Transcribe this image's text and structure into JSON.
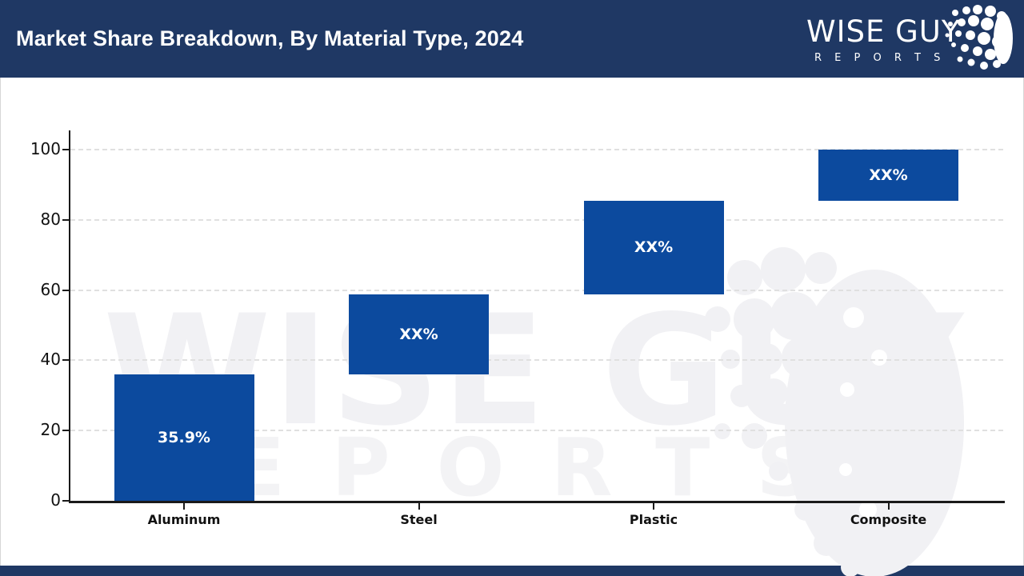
{
  "header": {
    "title": "Market Share Breakdown, By Material Type, 2024",
    "logo": {
      "line1": "WISE GUY",
      "line2": "R E P O R T S"
    }
  },
  "watermark": {
    "line1": "WISE GUY",
    "line2": "REPORTS"
  },
  "colors": {
    "header_navy": "#1f3864",
    "bar_blue": "#0c4a9e",
    "gridline_gray": "#e0e0e0",
    "watermark_gray": "#f1f1f4",
    "axis_black": "#1a1a1a"
  },
  "chart_data": {
    "type": "bar",
    "subtype": "waterfall-floating-bars",
    "title": "Market Share Breakdown, By Material Type, 2024",
    "categories": [
      "Aluminum",
      "Steel",
      "Plastic",
      "Composite"
    ],
    "segments": [
      {
        "category": "Aluminum",
        "start": 0,
        "end": 35.9,
        "label": "35.9%"
      },
      {
        "category": "Steel",
        "start": 35.9,
        "end": 58.8,
        "label": "XX%"
      },
      {
        "category": "Plastic",
        "start": 58.8,
        "end": 85.4,
        "label": "XX%"
      },
      {
        "category": "Composite",
        "start": 85.4,
        "end": 100,
        "label": "XX%"
      }
    ],
    "y_ticks": [
      0,
      20,
      40,
      60,
      80,
      100
    ],
    "ylim": [
      0,
      105
    ],
    "xlabel": "",
    "ylabel": "",
    "grid": "horizontal-dashed",
    "legend": "none",
    "bar_value_label_color": "#ffffff"
  }
}
